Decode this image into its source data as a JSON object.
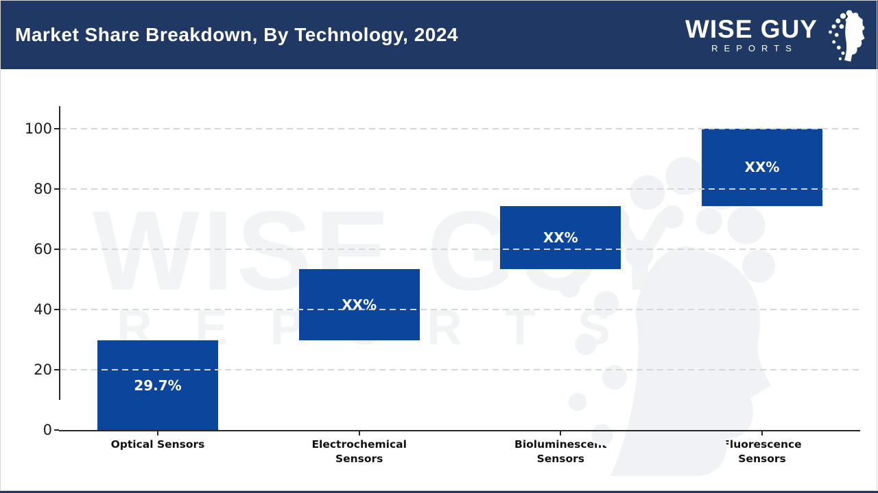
{
  "header": {
    "title": "Market Share Breakdown, By Technology, 2024",
    "bg_color": "#1f3864",
    "logo": {
      "line1": "WISE GUY",
      "line2": "REPORTS"
    }
  },
  "watermark": {
    "line1": "WISE GUY",
    "line2": "REPORTS"
  },
  "chart_data": {
    "type": "bar",
    "subtype": "waterfall",
    "title": "Market Share Breakdown, By Technology, 2024",
    "categories": [
      "Optical Sensors",
      "Electrochemical Sensors",
      "Bioluminescent Sensors",
      "Fluorescence Sensors"
    ],
    "segments": [
      {
        "category": "Optical Sensors",
        "start": 0,
        "end": 29.7,
        "label": "29.7%"
      },
      {
        "category": "Electrochemical Sensors",
        "start": 29.7,
        "end": 53.3,
        "label": "XX%"
      },
      {
        "category": "Bioluminescent Sensors",
        "start": 53.3,
        "end": 74.3,
        "label": "XX%"
      },
      {
        "category": "Fluorescence Sensors",
        "start": 74.3,
        "end": 100,
        "label": "XX%"
      }
    ],
    "y_ticks": [
      0,
      20,
      40,
      60,
      80,
      100
    ],
    "ylim": [
      0,
      107
    ],
    "xlabel": "",
    "ylabel": "",
    "grid": "dashed-horizontal",
    "legend": "none",
    "bar_color": "#0b459c",
    "value_label_color": "#ffffff"
  }
}
